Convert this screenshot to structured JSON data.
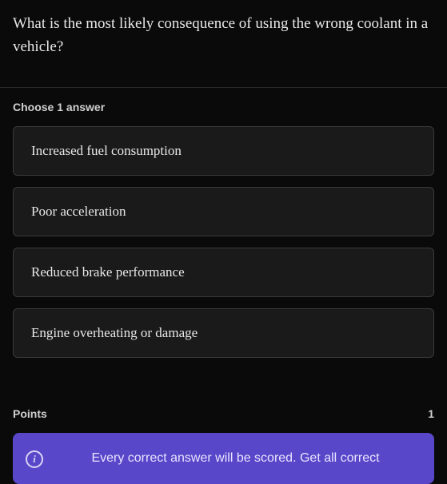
{
  "question": {
    "text": "What is the most likely consequence of using the wrong coolant in a vehicle?"
  },
  "instruction": "Choose 1 answer",
  "answers": [
    "Increased fuel consumption",
    "Poor acceleration",
    "Reduced brake performance",
    "Engine overheating or damage"
  ],
  "points": {
    "label": "Points",
    "value": "1"
  },
  "banner": {
    "text": "Every correct answer will be scored. Get all correct"
  },
  "colors": {
    "background": "#0a0a0a",
    "text": "#e8e8e8",
    "optionBg": "#1a1a1a",
    "optionBorder": "#3a3a3a",
    "bannerBg": "#5848c9",
    "bannerText": "#e8e4ff",
    "iconBorder": "#d8d4f5"
  }
}
